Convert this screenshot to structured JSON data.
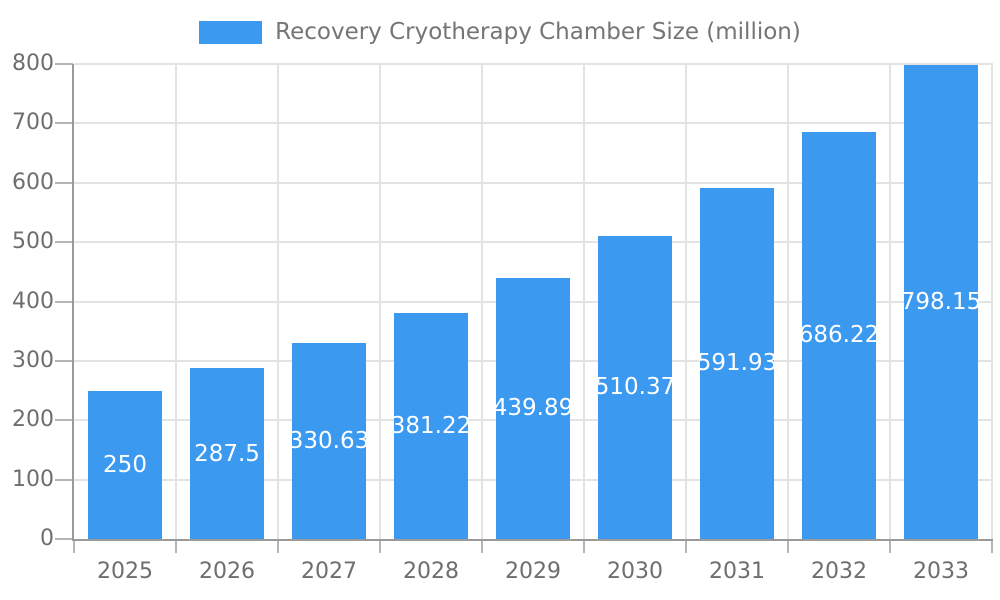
{
  "legend": {
    "label": "Recovery Cryotherapy Chamber Size (million)"
  },
  "chart_data": {
    "type": "bar",
    "title": "Recovery Cryotherapy Chamber Size (million)",
    "legend_position": "top-center",
    "categories": [
      "2025",
      "2026",
      "2027",
      "2028",
      "2029",
      "2030",
      "2031",
      "2032",
      "2033"
    ],
    "series": [
      {
        "name": "Recovery Cryotherapy Chamber Size (million)",
        "values": [
          250,
          287.5,
          330.63,
          381.22,
          439.89,
          510.37,
          591.93,
          686.22,
          798.15
        ],
        "value_labels": [
          "250",
          "287.5",
          "330.63",
          "381.22",
          "439.89",
          "510.37",
          "591.93",
          "686.22",
          "798.15"
        ]
      }
    ],
    "xlabel": "",
    "ylabel": "",
    "ylim": [
      0,
      800
    ],
    "ytick_step": 100,
    "ytick_labels": [
      "0",
      "100",
      "200",
      "300",
      "400",
      "500",
      "600",
      "700",
      "800"
    ],
    "grid": true,
    "value_labels_inside_bars": true,
    "colors": {
      "bar": "#3B99F0",
      "axis_line": "#9A9A9A",
      "gridline": "#E3E3E3",
      "tick": "#B5B5B5",
      "tick_label_text": "#6E6E6E",
      "legend_text": "#757575",
      "value_text": "#FFFFFF",
      "background": "#FFFFFF"
    }
  }
}
